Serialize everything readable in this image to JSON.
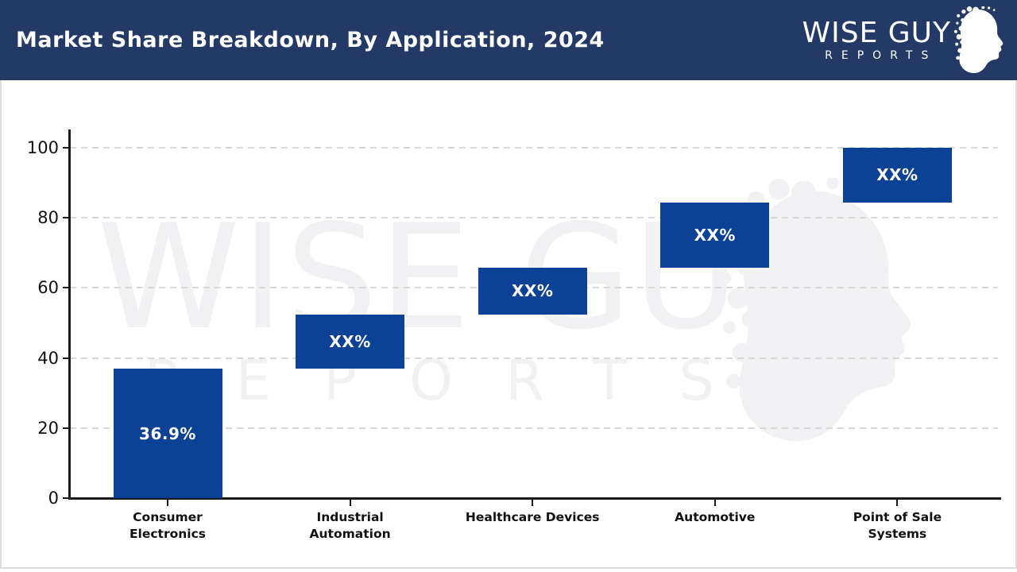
{
  "header": {
    "title": "Market Share Breakdown, By Application, 2024",
    "logo": {
      "line1": "WISE GUY",
      "line2": "REPORTS"
    }
  },
  "watermark": {
    "line1": "WISE GUY",
    "line2": "REPORTS"
  },
  "chart_data": {
    "type": "bar",
    "subtype": "waterfall-floating-segments",
    "title": "Market Share Breakdown, By Application, 2024",
    "categories": [
      "Consumer Electronics",
      "Industrial Automation",
      "Healthcare Devices",
      "Automotive",
      "Point of Sale Systems"
    ],
    "xtick_display_lines": [
      [
        "Consumer",
        "Electronics"
      ],
      [
        "Industrial",
        "Automation"
      ],
      [
        "Healthcare Devices"
      ],
      [
        "Automotive"
      ],
      [
        "Point of Sale",
        "Systems"
      ]
    ],
    "segments": [
      [
        0,
        36.9
      ],
      [
        36.9,
        52.4
      ],
      [
        52.4,
        65.8
      ],
      [
        65.8,
        84.4
      ],
      [
        84.4,
        100
      ]
    ],
    "bar_labels": [
      "36.9%",
      "XX%",
      "XX%",
      "XX%",
      "XX%"
    ],
    "yticks": [
      0,
      20,
      40,
      60,
      80,
      100
    ],
    "ylim": [
      0,
      105
    ],
    "xlabel": "",
    "ylabel": "",
    "grid": "horizontal-dashed",
    "legend": "none",
    "colors": {
      "bar": "#0b4296",
      "bar_label": "#ffffff",
      "axis": "#1a1a1a",
      "gridline": "#d9d9d9",
      "tick_label": "#111111"
    }
  },
  "colors": {
    "header_bg": "#233a66",
    "body_bg": "#ffffff",
    "watermark": "#f1f1f4",
    "border": "#dcdcdc"
  }
}
